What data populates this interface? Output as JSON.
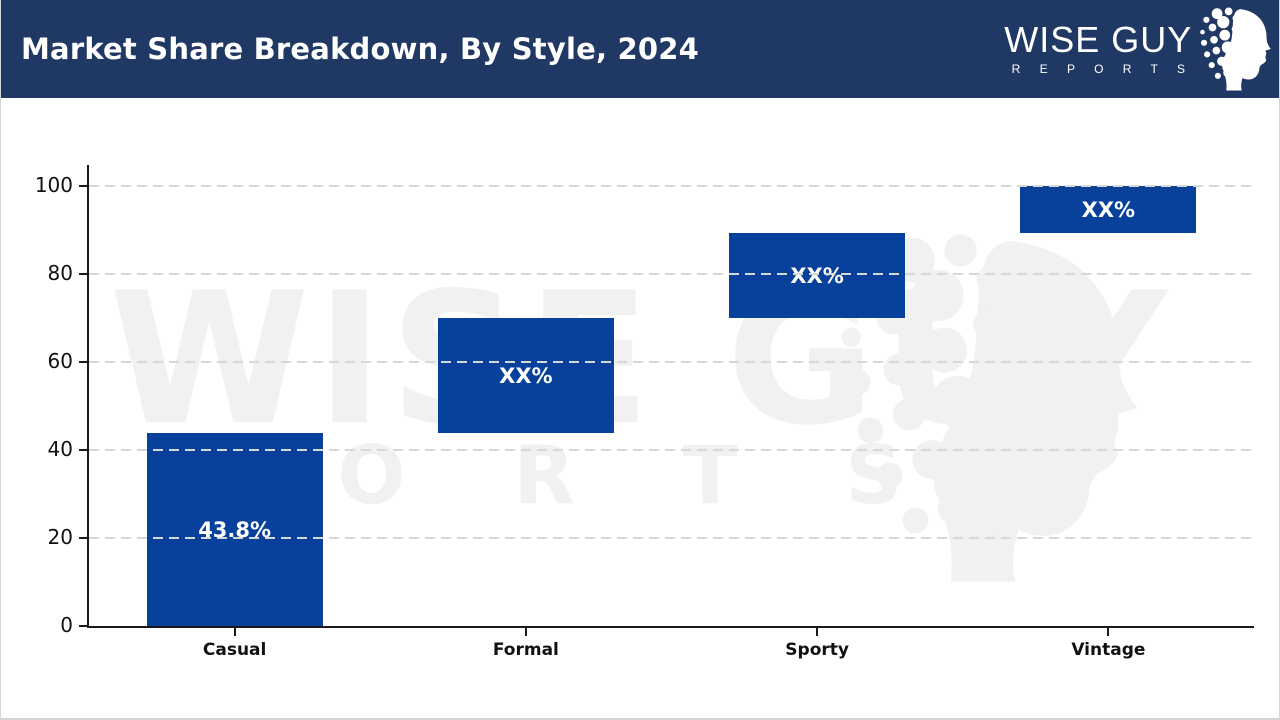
{
  "header": {
    "title": "Market Share Breakdown, By Style, 2024",
    "bg_color": "#1f3864",
    "logo": {
      "line1": "WISE GUY",
      "line2": "R E P O R T S",
      "face_icon": "dotted-head-profile"
    }
  },
  "watermark": {
    "line1": "WISE GUY",
    "line2": "P O R T S",
    "face_icon": "dotted-head-profile",
    "color": "#f1f1f2"
  },
  "chart_data": {
    "type": "bar",
    "subtype": "waterfall",
    "title": "Market Share Breakdown, By Style, 2024",
    "categories": [
      "Casual",
      "Formal",
      "Sporty",
      "Vintage"
    ],
    "segments": [
      {
        "category": "Casual",
        "start": 0,
        "end": 43.8,
        "label": "43.8%"
      },
      {
        "category": "Formal",
        "start": 43.8,
        "end": 70.0,
        "label": "XX%"
      },
      {
        "category": "Sporty",
        "start": 70.0,
        "end": 89.3,
        "label": "XX%"
      },
      {
        "category": "Vintage",
        "start": 89.3,
        "end": 100.0,
        "label": "XX%"
      }
    ],
    "yticks": [
      0,
      20,
      40,
      60,
      80,
      100
    ],
    "ylim": [
      0,
      104
    ],
    "xlabel": "",
    "ylabel": "",
    "grid": "horizontal-dashed",
    "legend": "none",
    "bar_color": "#07419c",
    "bar_label_color": "#ffffff",
    "axis_color": "#1a1a1a"
  }
}
